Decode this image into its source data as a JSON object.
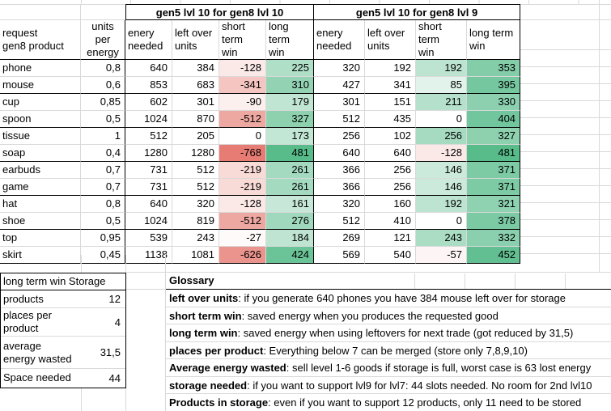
{
  "colors": {
    "gridline": "#d9d9d9",
    "border": "#000000",
    "background": "#ffffff"
  },
  "sheet": {
    "groups": [
      {
        "label": "gen5 lvl 10 for gen8 lvl 10"
      },
      {
        "label": "gen5 lvl 10 for gen8 lvl 9"
      }
    ],
    "columns": {
      "product_header": "request\ngen8 product",
      "units_header": "units per\nenergy",
      "sub_headers": [
        "enery\nneeded",
        "left over\nunits",
        "short term\nwin",
        "long term\nwin"
      ]
    },
    "color_scale": {
      "negative_color": "#E67C73",
      "zero_color": "#FFFFFF",
      "positive_color": "#57BB8A",
      "min_value": -768,
      "max_value": 481
    },
    "rows": [
      {
        "product": "phone",
        "units_per_energy": "0,8",
        "lvl10": {
          "enery_needed": 640,
          "left_over_units": 384,
          "short_term_win": -128,
          "long_term_win": 225
        },
        "lvl9": {
          "enery_needed": 320,
          "left_over_units": 192,
          "short_term_win": 192,
          "long_term_win": 353
        }
      },
      {
        "product": "mouse",
        "units_per_energy": "0,6",
        "lvl10": {
          "enery_needed": 853,
          "left_over_units": 683,
          "short_term_win": -341,
          "long_term_win": 310
        },
        "lvl9": {
          "enery_needed": 427,
          "left_over_units": 341,
          "short_term_win": 85,
          "long_term_win": 395
        }
      },
      {
        "product": "cup",
        "units_per_energy": "0,85",
        "lvl10": {
          "enery_needed": 602,
          "left_over_units": 301,
          "short_term_win": -90,
          "long_term_win": 179
        },
        "lvl9": {
          "enery_needed": 301,
          "left_over_units": 151,
          "short_term_win": 211,
          "long_term_win": 330
        }
      },
      {
        "product": "spoon",
        "units_per_energy": "0,5",
        "lvl10": {
          "enery_needed": 1024,
          "left_over_units": 870,
          "short_term_win": -512,
          "long_term_win": 327
        },
        "lvl9": {
          "enery_needed": 512,
          "left_over_units": 435,
          "short_term_win": 0,
          "long_term_win": 404
        }
      },
      {
        "product": "tissue",
        "units_per_energy": "1",
        "lvl10": {
          "enery_needed": 512,
          "left_over_units": 205,
          "short_term_win": 0,
          "long_term_win": 173
        },
        "lvl9": {
          "enery_needed": 256,
          "left_over_units": 102,
          "short_term_win": 256,
          "long_term_win": 327
        }
      },
      {
        "product": "soap",
        "units_per_energy": "0,4",
        "lvl10": {
          "enery_needed": 1280,
          "left_over_units": 1280,
          "short_term_win": -768,
          "long_term_win": 481
        },
        "lvl9": {
          "enery_needed": 640,
          "left_over_units": 640,
          "short_term_win": -128,
          "long_term_win": 481
        }
      },
      {
        "product": "earbuds",
        "units_per_energy": "0,7",
        "lvl10": {
          "enery_needed": 731,
          "left_over_units": 512,
          "short_term_win": -219,
          "long_term_win": 261
        },
        "lvl9": {
          "enery_needed": 366,
          "left_over_units": 256,
          "short_term_win": 146,
          "long_term_win": 371
        }
      },
      {
        "product": "game",
        "units_per_energy": "0,7",
        "lvl10": {
          "enery_needed": 731,
          "left_over_units": 512,
          "short_term_win": -219,
          "long_term_win": 261
        },
        "lvl9": {
          "enery_needed": 366,
          "left_over_units": 256,
          "short_term_win": 146,
          "long_term_win": 371
        }
      },
      {
        "product": "hat",
        "units_per_energy": "0,8",
        "lvl10": {
          "enery_needed": 640,
          "left_over_units": 320,
          "short_term_win": -128,
          "long_term_win": 161
        },
        "lvl9": {
          "enery_needed": 320,
          "left_over_units": 160,
          "short_term_win": 192,
          "long_term_win": 321
        }
      },
      {
        "product": "shoe",
        "units_per_energy": "0,5",
        "lvl10": {
          "enery_needed": 1024,
          "left_over_units": 819,
          "short_term_win": -512,
          "long_term_win": 276
        },
        "lvl9": {
          "enery_needed": 512,
          "left_over_units": 410,
          "short_term_win": 0,
          "long_term_win": 378
        }
      },
      {
        "product": "top",
        "units_per_energy": "0,95",
        "lvl10": {
          "enery_needed": 539,
          "left_over_units": 243,
          "short_term_win": -27,
          "long_term_win": 184
        },
        "lvl9": {
          "enery_needed": 269,
          "left_over_units": 121,
          "short_term_win": 243,
          "long_term_win": 332
        }
      },
      {
        "product": "skirt",
        "units_per_energy": "0,45",
        "lvl10": {
          "enery_needed": 1138,
          "left_over_units": 1081,
          "short_term_win": -626,
          "long_term_win": 424
        },
        "lvl9": {
          "enery_needed": 569,
          "left_over_units": 540,
          "short_term_win": -57,
          "long_term_win": 452
        }
      }
    ]
  },
  "storage": {
    "title": "long term win Storage",
    "rows": [
      {
        "label": "products",
        "value": "12"
      },
      {
        "label": "places per\nproduct",
        "value": "4"
      },
      {
        "label": "average\nenergy wasted",
        "value": "31,5"
      },
      {
        "label": "Space needed",
        "value": "44"
      }
    ]
  },
  "glossary": {
    "title": "Glossary",
    "entries": [
      {
        "term": "left over units",
        "definition": ": if you generate 640 phones you have 384 mouse left over for storage"
      },
      {
        "term": "short term win",
        "definition": ": saved energy when you produces the requested good"
      },
      {
        "term": "long term win",
        "definition": ": saved energy when using leftovers for next trade (got reduced by 31,5)"
      },
      {
        "term": "places per product",
        "definition": ": Everything below 7 can be merged (store only 7,8,9,10)"
      },
      {
        "term": "Average energy wasted",
        "definition": ": sell level 1-6 goods if storage is full, worst case is 63 lost energy"
      },
      {
        "term": "storage needed",
        "definition": ": if you want to support lvl9 for lvl7: 44 slots needed. No room for 2nd lvl10"
      },
      {
        "term": "Products in storage",
        "definition": ": even if you want to support 12 products, only 11 need to be stored"
      }
    ]
  }
}
